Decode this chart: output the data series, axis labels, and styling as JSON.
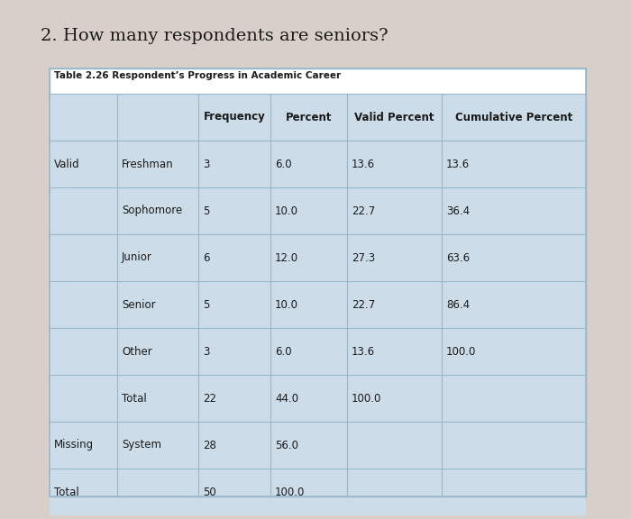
{
  "title": "2. How many respondents are seniors?",
  "table_title": "Table 2.26 Respondent’s Progress in Academic Career",
  "col_headers": [
    "",
    "",
    "Frequency",
    "Percent",
    "Valid Percent",
    "Cumulative Percent"
  ],
  "rows": [
    [
      "Valid",
      "Freshman",
      "3",
      "6.0",
      "13.6",
      "13.6"
    ],
    [
      "",
      "Sophomore",
      "5",
      "10.0",
      "22.7",
      "36.4"
    ],
    [
      "",
      "Junior",
      "6",
      "12.0",
      "27.3",
      "63.6"
    ],
    [
      "",
      "Senior",
      "5",
      "10.0",
      "22.7",
      "86.4"
    ],
    [
      "",
      "Other",
      "3",
      "6.0",
      "13.6",
      "100.0"
    ],
    [
      "",
      "Total",
      "22",
      "44.0",
      "100.0",
      ""
    ],
    [
      "Missing",
      "System",
      "28",
      "56.0",
      "",
      ""
    ],
    [
      "Total",
      "",
      "50",
      "100.0",
      "",
      ""
    ]
  ],
  "bg_color": "#ccdce8",
  "page_bg": "#d8d0c8",
  "border_color": "#9ab8cc",
  "text_color": "#1a1a1a",
  "title_fontsize": 14,
  "table_title_fontsize": 7.5,
  "cell_fontsize": 8.5,
  "header_fontsize": 8.5,
  "figsize": [
    7.0,
    5.76
  ],
  "dpi": 100
}
